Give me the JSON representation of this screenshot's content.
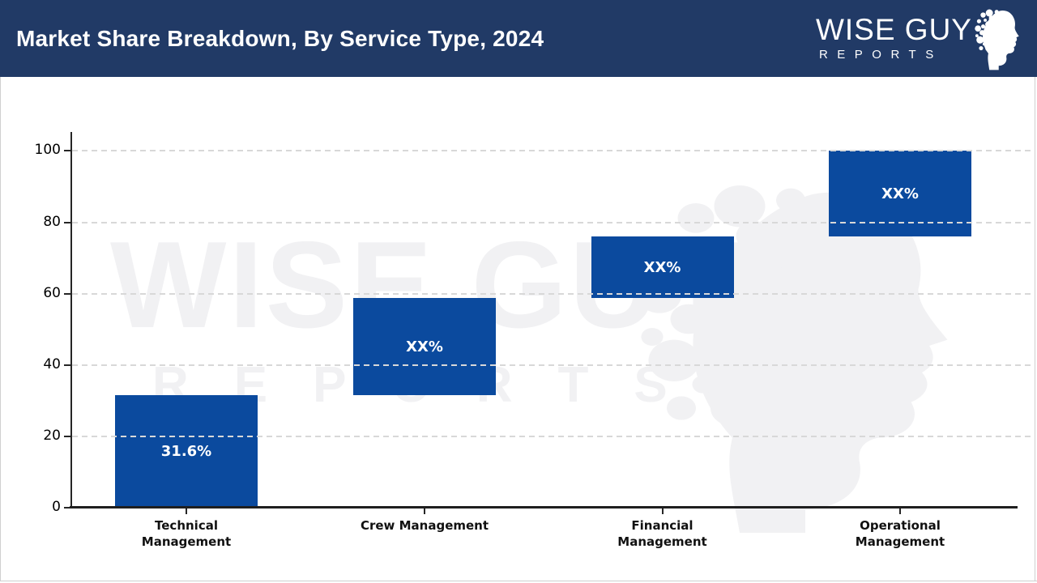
{
  "header": {
    "title": "Market Share Breakdown, By Service Type, 2024",
    "logo": {
      "line1": "WISE GUY",
      "line2": "REPORTS"
    }
  },
  "watermark": {
    "line1": "WISE GUY",
    "line2": "REPORTS"
  },
  "chart_data": {
    "type": "waterfall",
    "title": "Market Share Breakdown, By Service Type, 2024",
    "categories": [
      "Technical Management",
      "Crew Management",
      "Financial Management",
      "Operational Management"
    ],
    "segments": [
      {
        "category": "Technical Management",
        "lines": [
          "Technical",
          "Management"
        ],
        "start": 0,
        "end": 31.6,
        "label": "31.6%"
      },
      {
        "category": "Crew Management",
        "lines": [
          "Crew Management"
        ],
        "start": 31.6,
        "end": 58.7,
        "label": "XX%"
      },
      {
        "category": "Financial Management",
        "lines": [
          "Financial",
          "Management"
        ],
        "start": 58.7,
        "end": 76.0,
        "label": "XX%"
      },
      {
        "category": "Operational Management",
        "lines": [
          "Operational",
          "Management"
        ],
        "start": 76.0,
        "end": 100.0,
        "label": "XX%"
      }
    ],
    "y_ticks": [
      0,
      20,
      40,
      60,
      80,
      100
    ],
    "ylim": [
      0,
      105
    ],
    "xlabel": "",
    "ylabel": "",
    "grid": "horizontal-dashed",
    "legend": "none",
    "bar_color": "#0b4a9e",
    "bar_label_color": "#ffffff",
    "header_color": "#213a66"
  }
}
